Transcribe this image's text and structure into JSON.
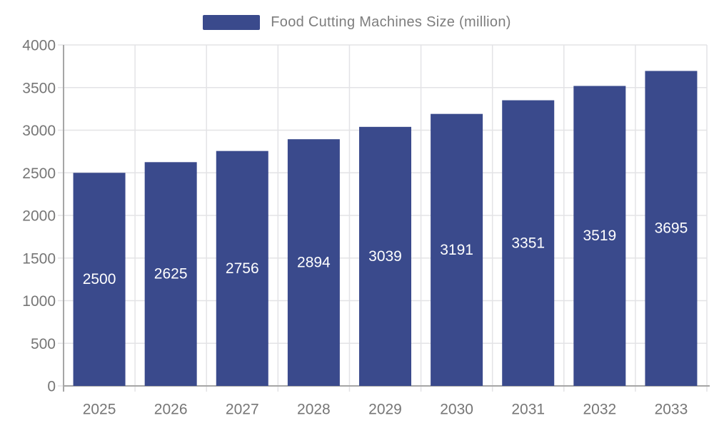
{
  "legend": {
    "label": "Food Cutting Machines Size (million)"
  },
  "chart_data": {
    "type": "bar",
    "title": "Food Cutting Machines Size (million)",
    "series_name": "Food Cutting Machines Size (million)",
    "categories": [
      "2025",
      "2026",
      "2027",
      "2028",
      "2029",
      "2030",
      "2031",
      "2032",
      "2033"
    ],
    "values": [
      2500,
      2625,
      2756,
      2894,
      3039,
      3191,
      3351,
      3519,
      3695
    ],
    "xlabel": "",
    "ylabel": "",
    "ylim": [
      0,
      4000
    ],
    "ytick_step": 500,
    "yticks": [
      0,
      500,
      1000,
      1500,
      2000,
      2500,
      3000,
      3500,
      4000
    ],
    "grid": true,
    "legend_position": "top",
    "bar_label_position": "inside-middle",
    "colors": {
      "bar": "#3A4A8C",
      "bar_label": "#ffffff",
      "axis_text": "#767676",
      "legend_text": "#7d7d7d",
      "grid_line": "#e3e3e6",
      "axis_line": "#a6a6a6",
      "background": "#ffffff"
    }
  }
}
